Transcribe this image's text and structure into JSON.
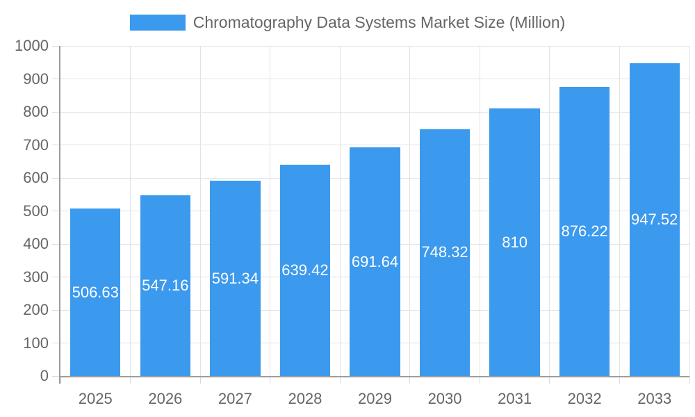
{
  "chart_data": {
    "type": "bar",
    "title": "Chromatography Data Systems Market Size (Million)",
    "categories": [
      "2025",
      "2026",
      "2027",
      "2028",
      "2029",
      "2030",
      "2031",
      "2032",
      "2033"
    ],
    "series": [
      {
        "name": "Chromatography Data Systems Market Size (Million)",
        "values": [
          506.63,
          547.16,
          591.34,
          639.42,
          691.64,
          748.32,
          810,
          876.22,
          947.52
        ]
      }
    ],
    "xlabel": "",
    "ylabel": "",
    "ylim": [
      0,
      1000
    ],
    "ytick_step": 100,
    "ytick_labels": [
      "0",
      "100",
      "200",
      "300",
      "400",
      "500",
      "600",
      "700",
      "800",
      "900",
      "1000"
    ],
    "grid": true,
    "legend_position": "top",
    "value_labels_position": "inside-center",
    "colors": {
      "bar": "#3B99EE",
      "title_text": "#666666",
      "axis_text": "#666666",
      "value_label_text": "#FFFFFF",
      "gridline": "#E2E2E2",
      "tick": "#D9D9D9",
      "axis_line": "#9E9E9E",
      "background": "#FFFFFF"
    }
  }
}
